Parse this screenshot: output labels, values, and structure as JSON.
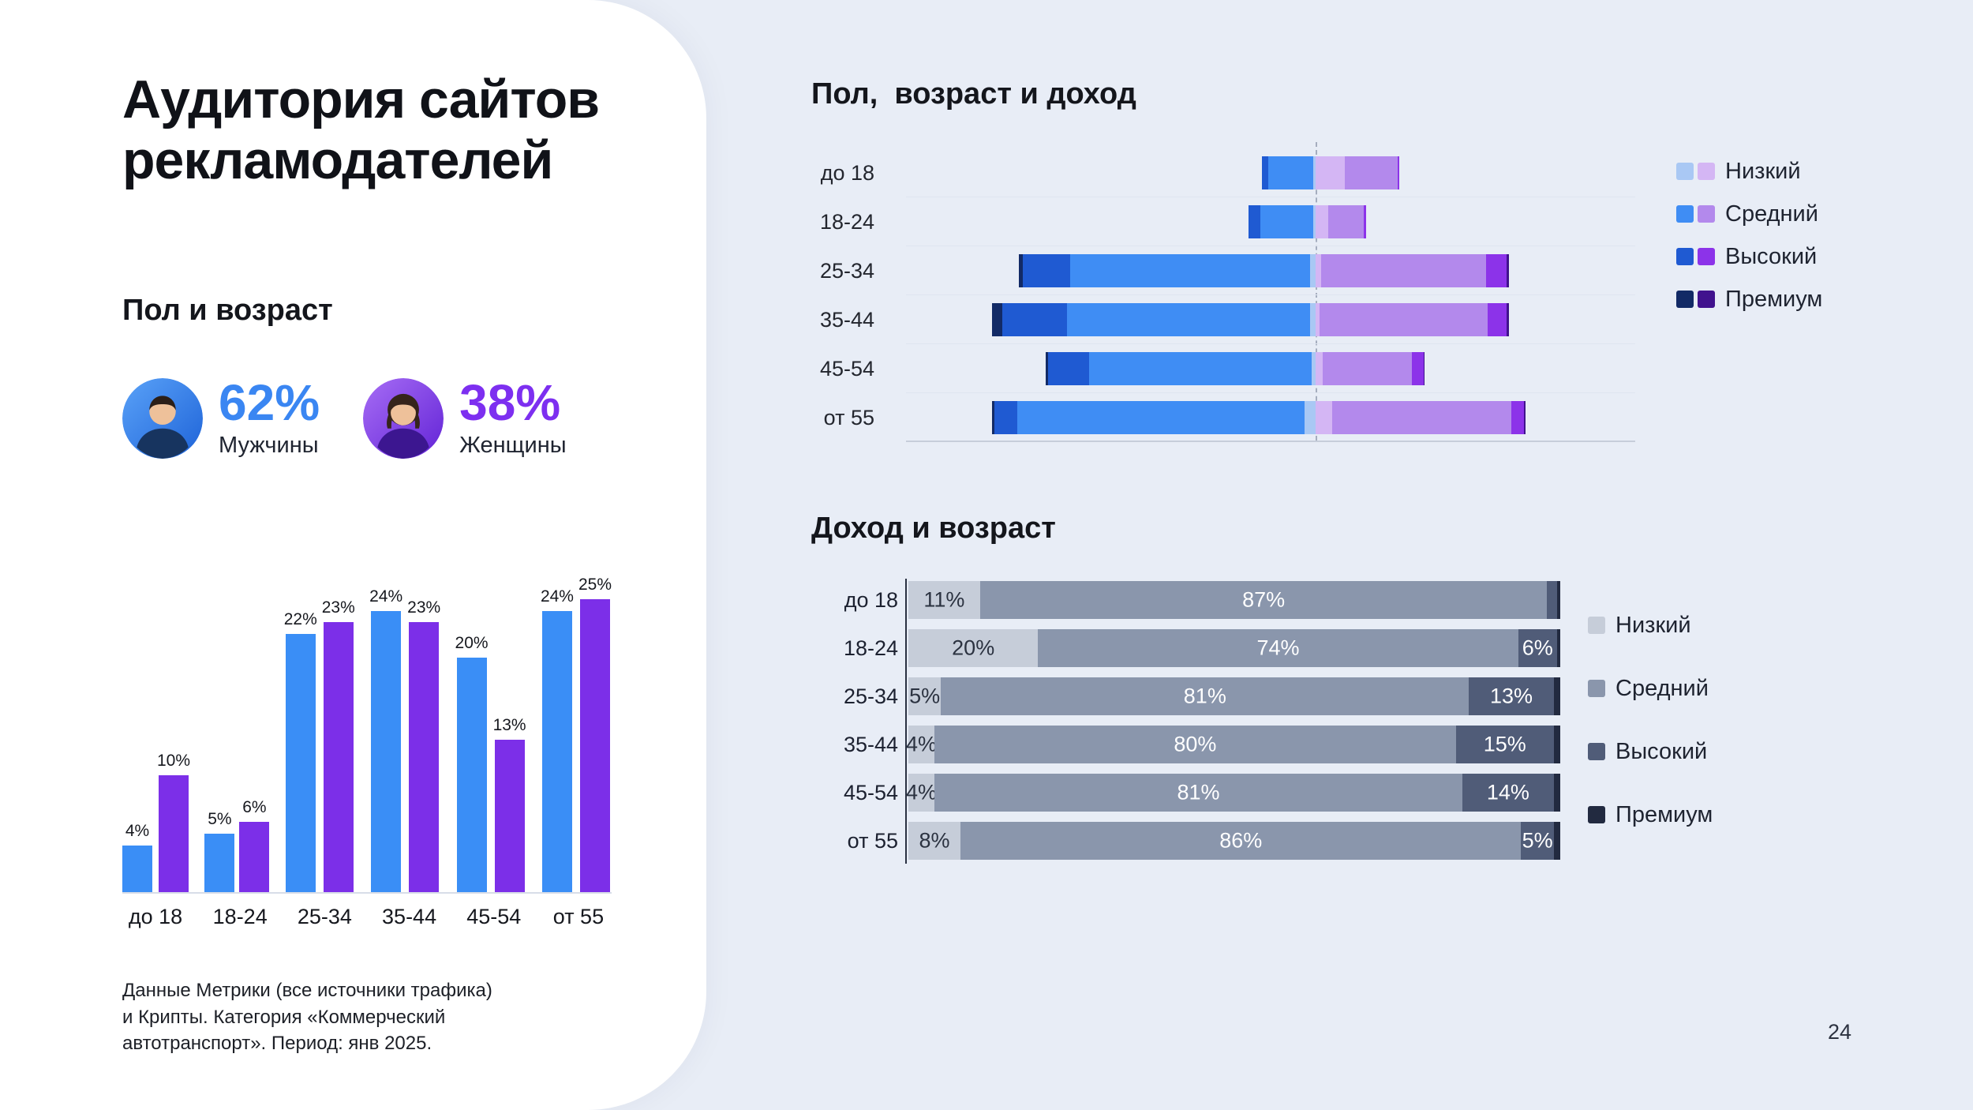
{
  "slide": {
    "page_number": "24",
    "background": "#e8edf6"
  },
  "left_panel": {
    "title_lines": [
      "Аудитория сайтов",
      "рекламодателей"
    ],
    "section_title": "Пол и возраст",
    "gender": {
      "male": {
        "pct": "62%",
        "label": "Мужчины",
        "color": "#3a86f2"
      },
      "female": {
        "pct": "38%",
        "label": "Женщины",
        "color": "#7d2ff0"
      }
    },
    "footnote": "Данные Метрики (все источники трафика)\nи Крипты. Категория «Коммерческий\nавтотранспорт». Период: янв 2025."
  },
  "pyramid": {
    "title": "Пол,  возраст и доход",
    "legend": [
      {
        "label": "Низкий",
        "male_color": "#a9c8f4",
        "female_color": "#d4b6f4"
      },
      {
        "label": "Средний",
        "male_color": "#3f8df4",
        "female_color": "#b389ec"
      },
      {
        "label": "Высокий",
        "male_color": "#1f5ad2",
        "female_color": "#8c33e9"
      },
      {
        "label": "Премиум",
        "male_color": "#122a66",
        "female_color": "#41128e"
      }
    ]
  },
  "income": {
    "title": "Доход и возраст",
    "legend": [
      {
        "label": "Низкий",
        "color": "#c6cdd9"
      },
      {
        "label": "Средний",
        "color": "#8a96ac"
      },
      {
        "label": "Высокий",
        "color": "#505c78"
      },
      {
        "label": "Премиум",
        "color": "#222a40"
      }
    ]
  },
  "chart_data": [
    {
      "type": "bar",
      "title": "Пол и возраст",
      "categories": [
        "до 18",
        "18-24",
        "25-34",
        "35-44",
        "45-54",
        "от 55"
      ],
      "series": [
        {
          "name": "Мужчины",
          "color": "#3a8ef6",
          "values": [
            4,
            5,
            22,
            24,
            20,
            24
          ]
        },
        {
          "name": "Женщины",
          "color": "#7c2fe8",
          "values": [
            10,
            6,
            23,
            23,
            13,
            25
          ]
        }
      ],
      "unit": "%",
      "ylim": [
        0,
        25
      ],
      "value_labels": true,
      "gender_totals": {
        "Мужчины": 62,
        "Женщины": 38
      }
    },
    {
      "type": "bar",
      "variant": "diverging-stacked-pyramid",
      "title": "Пол, возраст и доход",
      "categories": [
        "до 18",
        "18-24",
        "25-34",
        "35-44",
        "45-54",
        "от 55"
      ],
      "income_levels": [
        "Низкий",
        "Средний",
        "Высокий",
        "Премиум"
      ],
      "male": {
        "colors": [
          "#a9c8f4",
          "#3f8df4",
          "#1f5ad2",
          "#122a66"
        ],
        "rows": [
          [
            0.2,
            3.3,
            0.5,
            0
          ],
          [
            0.2,
            3.9,
            0.9,
            0
          ],
          [
            0.4,
            17.8,
            3.5,
            0.3
          ],
          [
            0.4,
            18.0,
            4.8,
            0.8
          ],
          [
            0.3,
            16.5,
            3.0,
            0.2
          ],
          [
            0.8,
            21.3,
            1.7,
            0.2
          ]
        ]
      },
      "female": {
        "colors": [
          "#d4b6f4",
          "#b389ec",
          "#8c33e9",
          "#41128e"
        ],
        "rows": [
          [
            3.5,
            6.3,
            0.2,
            0
          ],
          [
            1.5,
            4.2,
            0.3,
            0
          ],
          [
            0.7,
            19.6,
            2.4,
            0.3
          ],
          [
            0.5,
            20.0,
            2.2,
            0.3
          ],
          [
            0.8,
            10.7,
            1.4,
            0.1
          ],
          [
            2.0,
            21.3,
            1.5,
            0.2
          ]
        ]
      }
    },
    {
      "type": "bar",
      "variant": "stacked-horizontal",
      "title": "Доход и возраст",
      "categories": [
        "до 18",
        "18-24",
        "25-34",
        "35-44",
        "45-54",
        "от 55"
      ],
      "income_levels": [
        "Низкий",
        "Средний",
        "Высокий",
        "Премиум"
      ],
      "colors": [
        "#c6cdd9",
        "#8a96ac",
        "#505c78",
        "#222a40"
      ],
      "rows": [
        {
          "values": [
            11,
            87,
            1.5,
            0.5
          ],
          "labels": [
            "11%",
            "87%",
            "",
            ""
          ]
        },
        {
          "values": [
            20,
            74,
            6,
            0.5
          ],
          "labels": [
            "20%",
            "74%",
            "6%",
            ""
          ]
        },
        {
          "values": [
            5,
            81,
            13,
            1
          ],
          "labels": [
            "5%",
            "81%",
            "13%",
            ""
          ]
        },
        {
          "values": [
            4,
            80,
            15,
            1
          ],
          "labels": [
            "4%",
            "80%",
            "15%",
            ""
          ]
        },
        {
          "values": [
            4,
            81,
            14,
            1
          ],
          "labels": [
            "4%",
            "81%",
            "14%",
            ""
          ]
        },
        {
          "values": [
            8,
            86,
            5,
            1
          ],
          "labels": [
            "8%",
            "86%",
            "5%",
            ""
          ]
        }
      ]
    }
  ]
}
